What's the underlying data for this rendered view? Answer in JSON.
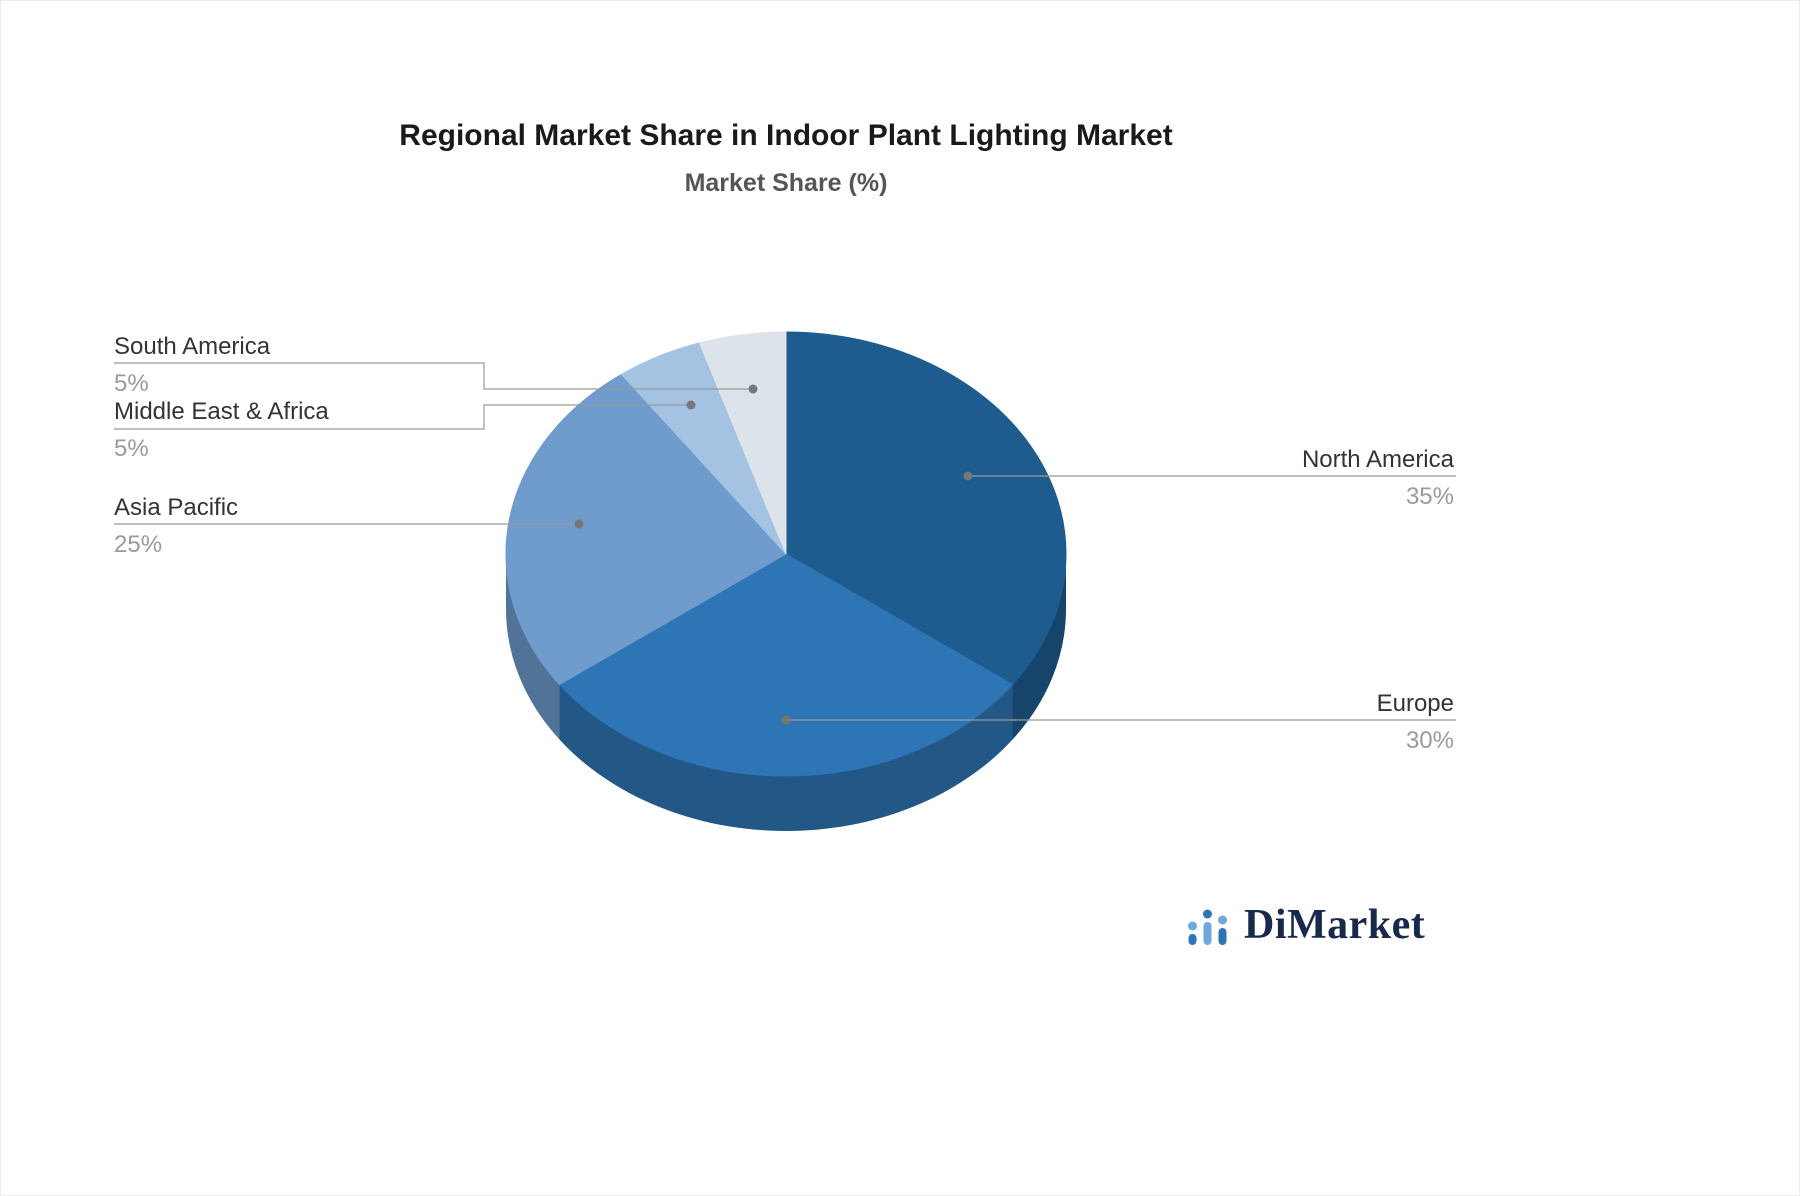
{
  "title": "Regional Market Share in Indoor Plant Lighting Market",
  "subtitle": "Market Share (%)",
  "brand": {
    "name": "DiMarket",
    "icon": "bar-chart-logo-icon"
  },
  "chart_data": {
    "type": "pie",
    "style": "3d-pie",
    "title": "Regional Market Share in Indoor Plant Lighting Market",
    "subtitle": "Market Share (%)",
    "unit": "%",
    "start_angle_deg": -90,
    "direction": "clockwise",
    "legend": "none",
    "labels_position": "outside-with-leader-lines",
    "slices": [
      {
        "name": "North America",
        "value": 35,
        "label": "35%",
        "color": "#1e5c90"
      },
      {
        "name": "Europe",
        "value": 30,
        "label": "30%",
        "color": "#2e75b5"
      },
      {
        "name": "Asia Pacific",
        "value": 25,
        "label": "25%",
        "color": "#6f9bcd"
      },
      {
        "name": "Middle East & Africa",
        "value": 5,
        "label": "5%",
        "color": "#a4c2e2"
      },
      {
        "name": "South America",
        "value": 5,
        "label": "5%",
        "color": "#dde3ea"
      }
    ],
    "leader_line_color": "#9a9a9a",
    "leader_dot_color": "#777777"
  }
}
